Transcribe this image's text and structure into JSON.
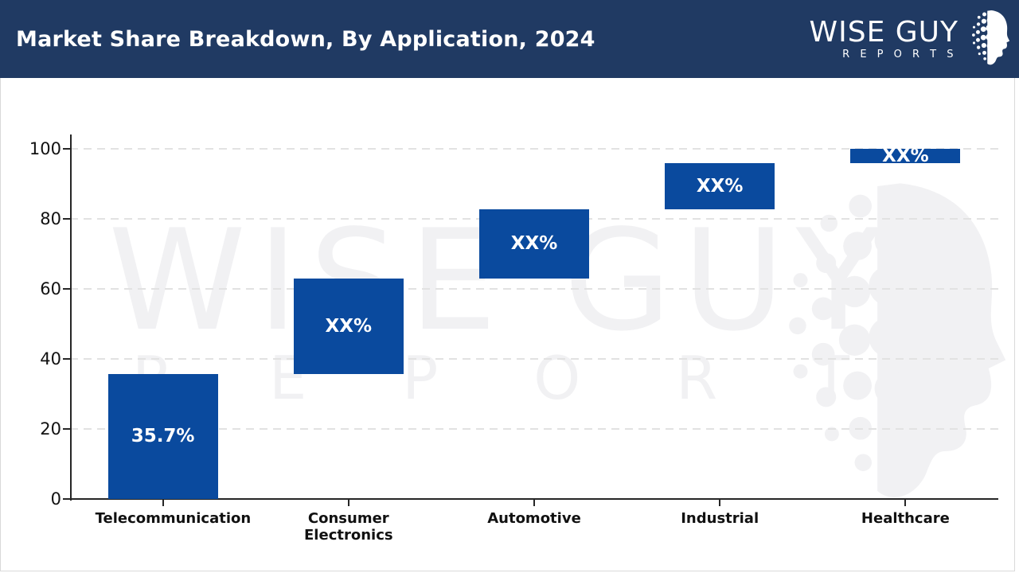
{
  "header": {
    "title": "Market Share Breakdown, By Application, 2024",
    "logo": {
      "line1": "WISE GUY",
      "line2": "R E P O R T S"
    }
  },
  "watermark": {
    "line1": "WISE GUY",
    "line2": "R E P O R T S"
  },
  "colors": {
    "header_bg": "#203a63",
    "bar": "#0a4a9e",
    "grid": "#e2e2e2",
    "axis": "#262626",
    "watermark": "#f1f1f3",
    "panel_border": "#d9d9d9",
    "bar_label": "#ffffff"
  },
  "chart_data": {
    "type": "bar",
    "subtype": "waterfall",
    "title": "Market Share Breakdown, By Application, 2024",
    "categories": [
      "Telecommunication",
      "Consumer Electronics",
      "Automotive",
      "Industrial",
      "Healthcare"
    ],
    "segments": [
      {
        "category": "Telecommunication",
        "start": 0,
        "end": 35.7,
        "label": "35.7%"
      },
      {
        "category": "Consumer Electronics",
        "start": 35.7,
        "end": 63.0,
        "label": "XX%"
      },
      {
        "category": "Automotive",
        "start": 63.0,
        "end": 82.8,
        "label": "XX%"
      },
      {
        "category": "Industrial",
        "start": 82.8,
        "end": 96.0,
        "label": "XX%"
      },
      {
        "category": "Healthcare",
        "start": 96.0,
        "end": 100.0,
        "label": "XX%"
      }
    ],
    "xlabel": "",
    "ylabel": "",
    "yticks": [
      0,
      20,
      40,
      60,
      80,
      100
    ],
    "ylim": [
      0,
      105
    ],
    "grid": "dashed-horizontal",
    "legend": "none"
  }
}
